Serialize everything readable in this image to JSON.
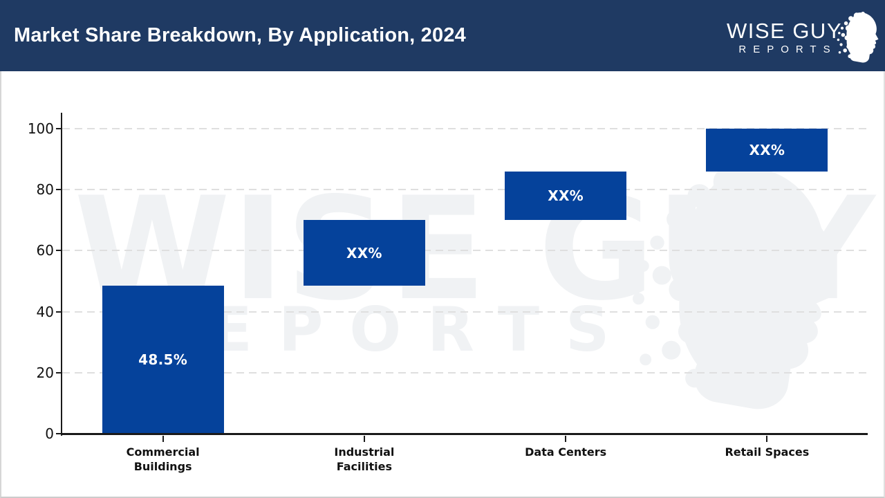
{
  "header": {
    "title": "Market Share Breakdown, By Application, 2024",
    "bg_color": "#1F3A63",
    "logo_line1": "WISE GUY",
    "logo_line2": "REPORTS"
  },
  "watermark": {
    "line1": "WISE GUY",
    "line2": "REPORTS"
  },
  "chart_data": {
    "type": "bar",
    "subtype": "floating-waterfall",
    "title": "Market Share Breakdown, By Application, 2024",
    "categories": [
      "Commercial\nBuildings",
      "Industrial\nFacilities",
      "Data Centers",
      "Retail Spaces"
    ],
    "segments": [
      {
        "category": "Commercial Buildings",
        "label": "48.5%",
        "start": 0,
        "end": 48.5
      },
      {
        "category": "Industrial Facilities",
        "label": "XX%",
        "start": 48.5,
        "end": 70
      },
      {
        "category": "Data Centers",
        "label": "XX%",
        "start": 70,
        "end": 86
      },
      {
        "category": "Retail Spaces",
        "label": "XX%",
        "start": 86,
        "end": 100
      }
    ],
    "ylim": [
      0,
      100
    ],
    "yticks": [
      0,
      20,
      40,
      60,
      80,
      100
    ],
    "grid": "horizontal-dashed",
    "legend": "none",
    "bar_color": "#05429B",
    "bar_label_color": "#FFFFFF",
    "axis_color": "#1A1A1A",
    "grid_color": "#DFDFDF"
  }
}
